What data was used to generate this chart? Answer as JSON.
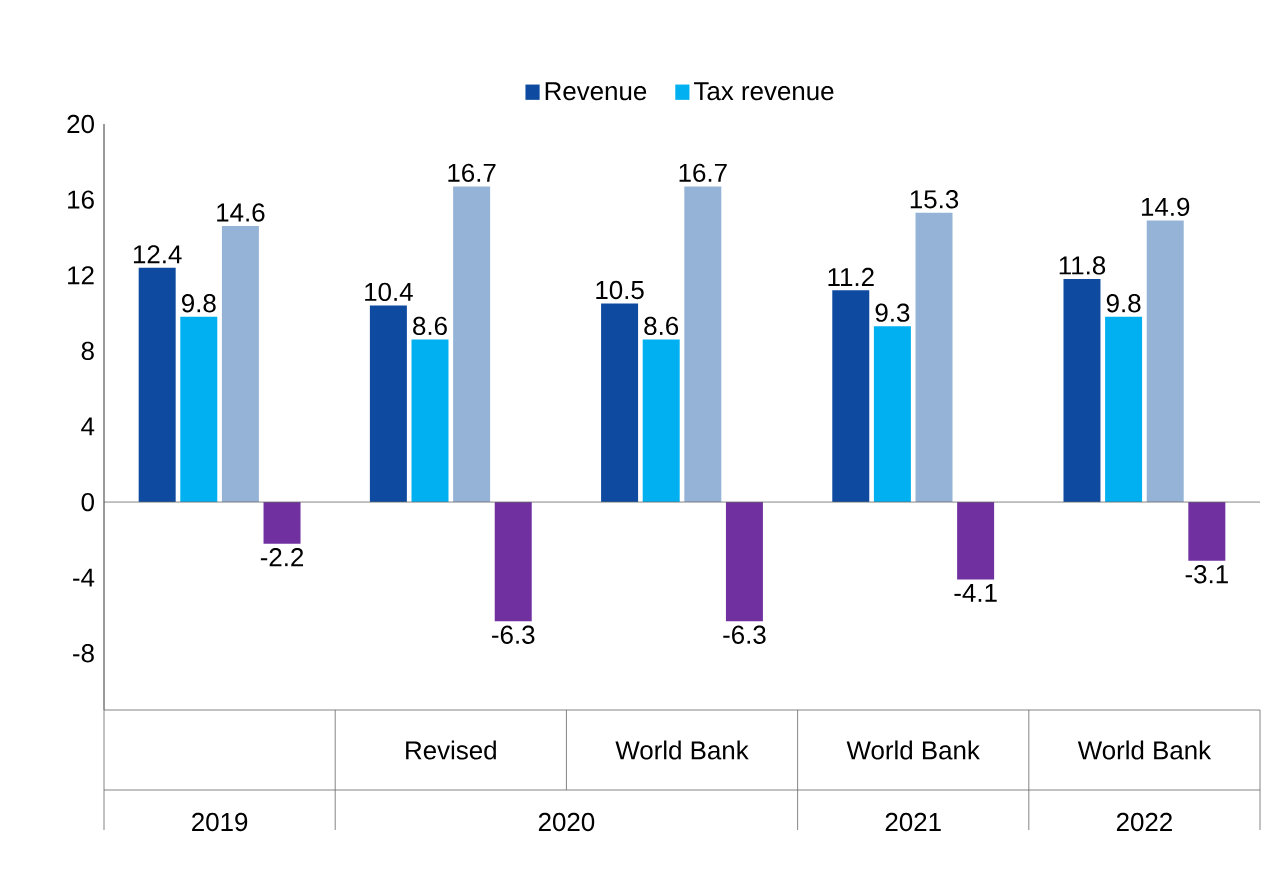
{
  "chart_data": {
    "type": "bar",
    "categories": [
      null,
      "Revised",
      "World Bank",
      "World Bank",
      "World Bank"
    ],
    "series": [
      {
        "name": "Revenue",
        "color": "#0e4aa0",
        "values": [
          12.4,
          10.4,
          10.5,
          11.2,
          11.8
        ]
      },
      {
        "name": "Tax revenue",
        "color": "#00b0f0",
        "values": [
          9.8,
          8.6,
          8.6,
          9.3,
          9.8
        ]
      },
      {
        "color": "#95b3d7",
        "values": [
          14.6,
          16.7,
          16.7,
          15.3,
          14.9
        ]
      },
      {
        "color": "#7030a0",
        "values": [
          -2.2,
          -6.3,
          -6.3,
          -4.1,
          -3.1
        ]
      }
    ],
    "ylim": [
      -11,
      20
    ],
    "yticks": [
      -8,
      -4,
      0,
      4,
      8,
      12,
      16,
      20
    ],
    "data_labels": true,
    "legend": "top",
    "annotations": [
      "2019",
      "2020",
      "2021",
      "2022"
    ]
  }
}
